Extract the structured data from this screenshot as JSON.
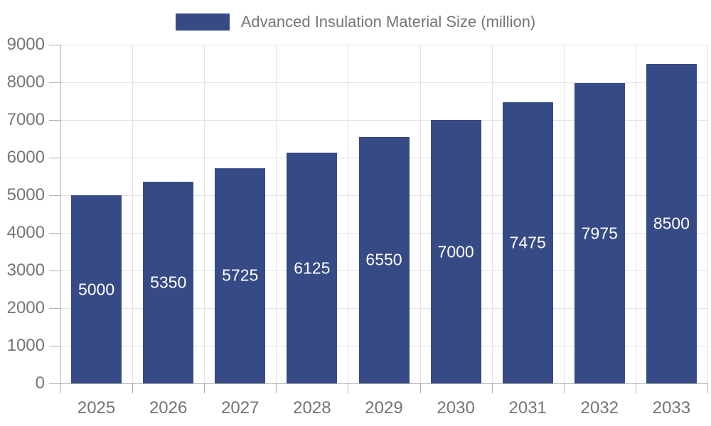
{
  "legend": {
    "label": "Advanced Insulation Material Size (million)",
    "swatch_color": "#364a85"
  },
  "chart_data": {
    "type": "bar",
    "title": "Advanced Insulation Material Size (million)",
    "series_name": "Advanced Insulation Material Size (million)",
    "categories": [
      "2025",
      "2026",
      "2027",
      "2028",
      "2029",
      "2030",
      "2031",
      "2032",
      "2033"
    ],
    "values": [
      5000,
      5350,
      5725,
      6125,
      6550,
      7000,
      7475,
      7975,
      8500
    ],
    "xlabel": "",
    "ylabel": "",
    "ylim": [
      0,
      9000
    ],
    "ytick_interval": 1000,
    "ytick_labels": [
      "0",
      "1000",
      "2000",
      "3000",
      "4000",
      "5000",
      "6000",
      "7000",
      "8000",
      "9000"
    ],
    "grid": true,
    "legend_position": "top-center",
    "value_labels_inside_bars": true,
    "colors": {
      "bar": "#364a85",
      "axis_line": "#b1b1b1",
      "gridline": "#e3e3e3",
      "axis_text": "#757575",
      "value_text": "#ffffff",
      "background": "#ffffff"
    }
  }
}
